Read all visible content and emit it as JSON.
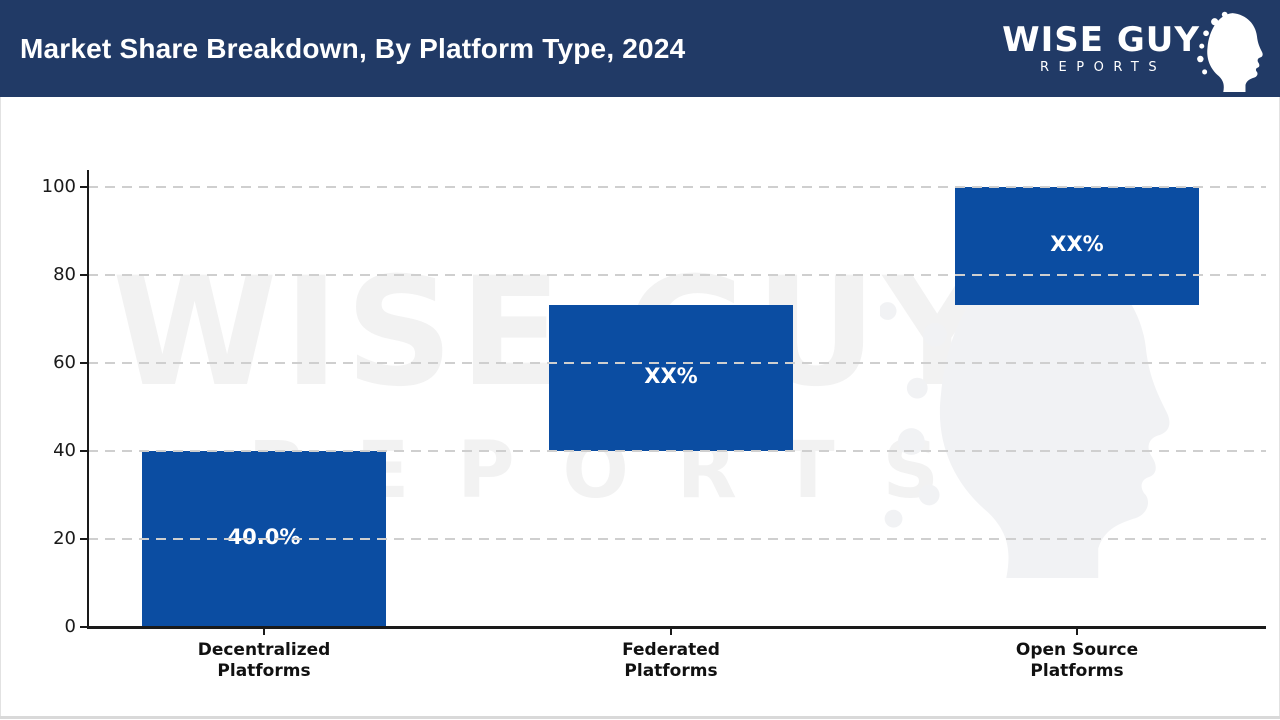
{
  "header": {
    "title": "Market Share Breakdown, By Platform Type, 2024",
    "logo": {
      "brand_top": "WISE GUY",
      "brand_bottom": "REPORTS"
    }
  },
  "watermark": {
    "line1": "WISE GUY",
    "line2": "REPORTS"
  },
  "chart_data": {
    "type": "bar",
    "subtype": "waterfall-stacked-percentage",
    "title": "Market Share Breakdown, By Platform Type, 2024",
    "categories": [
      "Decentralized Platforms",
      "Federated Platforms",
      "Open Source Platforms"
    ],
    "category_lines": [
      [
        "Decentralized",
        "Platforms"
      ],
      [
        "Federated",
        "Platforms"
      ],
      [
        "Open Source",
        "Platforms"
      ]
    ],
    "segments": [
      {
        "category": "Decentralized Platforms",
        "start": 0,
        "end": 40,
        "value": 40.0,
        "label": "40.0%"
      },
      {
        "category": "Federated Platforms",
        "start": 40,
        "end": 73.2,
        "value": 33.2,
        "label": "XX%"
      },
      {
        "category": "Open Source Platforms",
        "start": 73.2,
        "end": 100,
        "value": 26.8,
        "label": "XX%"
      }
    ],
    "ylim": [
      0,
      100
    ],
    "yticks": [
      0,
      20,
      40,
      60,
      80,
      100
    ],
    "xlabel": "",
    "ylabel": "",
    "grid": "horizontal-dashed",
    "legend": "none",
    "bar_color": "#0b4da2"
  },
  "colors": {
    "header_bg": "#213a66",
    "bar": "#0b4da2",
    "grid": "#cfcfcf",
    "axis": "#1a1a1a",
    "label_text": "#111111",
    "bar_label_text": "#ffffff",
    "watermark": "#f2f2f2"
  }
}
